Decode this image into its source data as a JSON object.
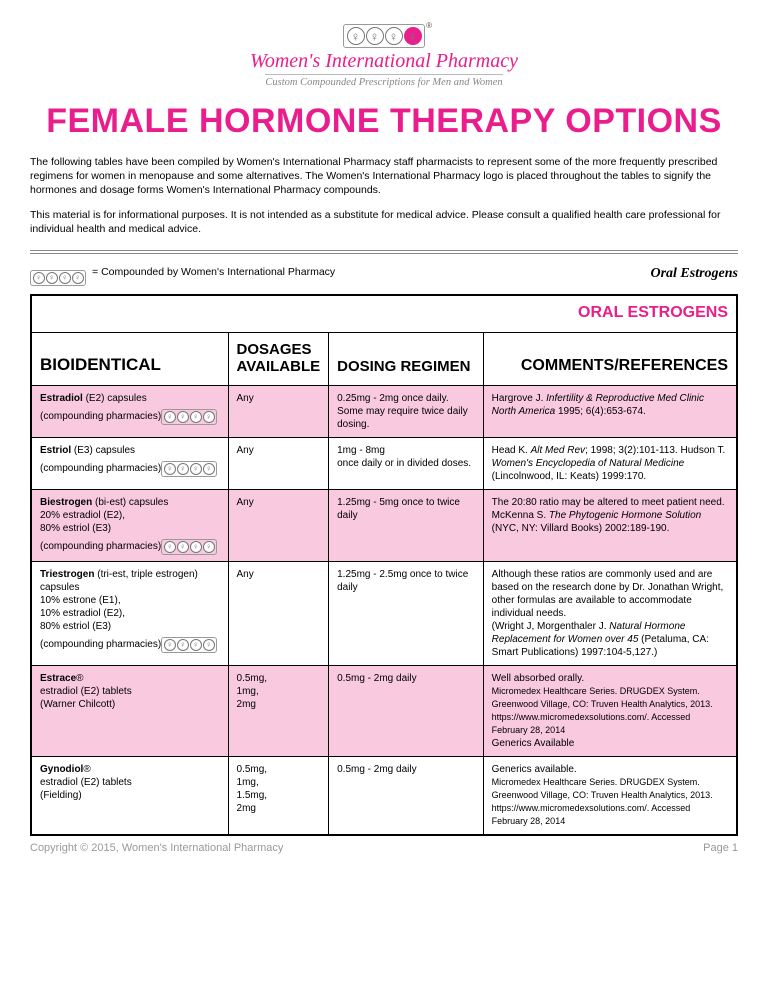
{
  "header": {
    "brand": "Women's International Pharmacy",
    "tagline": "Custom Compounded Prescriptions for Men and Women",
    "registered": "®"
  },
  "title": "FEMALE HORMONE THERAPY OPTIONS",
  "intro_p1": "The following tables have been compiled by Women's International Pharmacy staff pharmacists to represent some of the more frequently prescribed regimens for women in menopause and some alternatives.  The Women's International Pharmacy logo is placed throughout the tables to signify the hormones and dosage forms Women's International Pharmacy compounds.",
  "intro_p2": "This material is for informational purposes.  It is not intended as a substitute for medical advice.  Please consult a qualified health care professional for individual health and medical advice.",
  "legend": {
    "eq": "=",
    "text": "Compounded by Women's International Pharmacy"
  },
  "section_label": "Oral Estrogens",
  "table": {
    "title": "ORAL ESTROGENS",
    "headers": {
      "c1": "BIOIDENTICAL",
      "c2": "DOSAGES AVAILABLE",
      "c3": "DOSING REGIMEN",
      "c4": "COMMENTS/REFERENCES"
    },
    "rows": [
      {
        "pink": true,
        "badge": true,
        "name_html": "<b>Estradiol</b> (E2) capsules<br>(compounding pharmacies)",
        "dosages": "Any",
        "regimen": "0.25mg - 2mg once daily. Some may require twice daily dosing.",
        "comments_html": "Hargrove J. <i>Infertility & Reproductive Med Clinic North America</i> 1995; 6(4):653-674."
      },
      {
        "pink": false,
        "badge": true,
        "name_html": "<b>Estriol</b> (E3) capsules<br>(compounding pharmacies)",
        "dosages": "Any",
        "regimen": "1mg - 8mg<br>once daily or in divided doses.",
        "comments_html": "Head K. <i>Alt Med Rev</i>; 1998; 3(2):101-113. Hudson T. <i>Women's Encyclopedia of Natural Medicine</i> (Lincolnwood, IL: Keats) 1999:170."
      },
      {
        "pink": true,
        "badge": true,
        "name_html": "<b>Biestrogen</b> (bi-est) capsules<br>20% estradiol (E2),<br>80% estriol (E3)<br>(compounding pharmacies)",
        "dosages": "Any",
        "regimen": "1.25mg - 5mg once to twice daily",
        "comments_html": "The 20:80 ratio may be altered to meet patient need.<br>McKenna S. <i>The Phytogenic Hormone Solution</i> (NYC, NY: Villard Books) 2002:189-190."
      },
      {
        "pink": false,
        "badge": true,
        "name_html": "<b>Triestrogen</b> (tri-est, triple estrogen) capsules<br>10% estrone (E1),<br>10% estradiol (E2),<br>80% estriol (E3)<br>(compounding pharmacies)",
        "dosages": "Any",
        "regimen": "1.25mg - 2.5mg once to twice daily",
        "comments_html": "Although these ratios are commonly used and are based on the research done by Dr. Jonathan Wright, other formulas are available to accommodate individual needs.<br>(Wright J, Morgenthaler J. <i>Natural Hormone Replacement for Women over 45</i> (Petaluma, CA: Smart Publications) 1997:104-5,127.)"
      },
      {
        "pink": true,
        "badge": false,
        "name_html": "<b>Estrace</b>®<br>estradiol (E2) tablets<br>(Warner Chilcott)",
        "dosages": "0.5mg,<br>1mg,<br>2mg",
        "regimen": "0.5mg - 2mg daily",
        "comments_html": "Well absorbed orally.<br><span style='font-size:9px'>Micromedex Healthcare Series. DRUGDEX System. Greenwood Village, CO: Truven Health Analytics, 2013. https://www.micromedexsolutions.com/. Accessed February 28, 2014</span><br>Generics Available"
      },
      {
        "pink": false,
        "badge": false,
        "name_html": "<b>Gynodiol</b>®<br>estradiol (E2) tablets<br>(Fielding)",
        "dosages": "0.5mg,<br>1mg,<br>1.5mg,<br>2mg",
        "regimen": "0.5mg - 2mg daily",
        "comments_html": "Generics available.<br><span style='font-size:9px'>Micromedex Healthcare Series. DRUGDEX System. Greenwood Village, CO: Truven Health Analytics, 2013. https://www.micromedexsolutions.com/. Accessed February 28, 2014</span>"
      }
    ]
  },
  "footer": {
    "copyright": "Copyright © 2015, Women's International Pharmacy",
    "page": "Page 1"
  },
  "colors": {
    "pink": "#e91e8c",
    "row_pink": "#f9c9e0",
    "text": "#000000",
    "muted": "#888888"
  }
}
